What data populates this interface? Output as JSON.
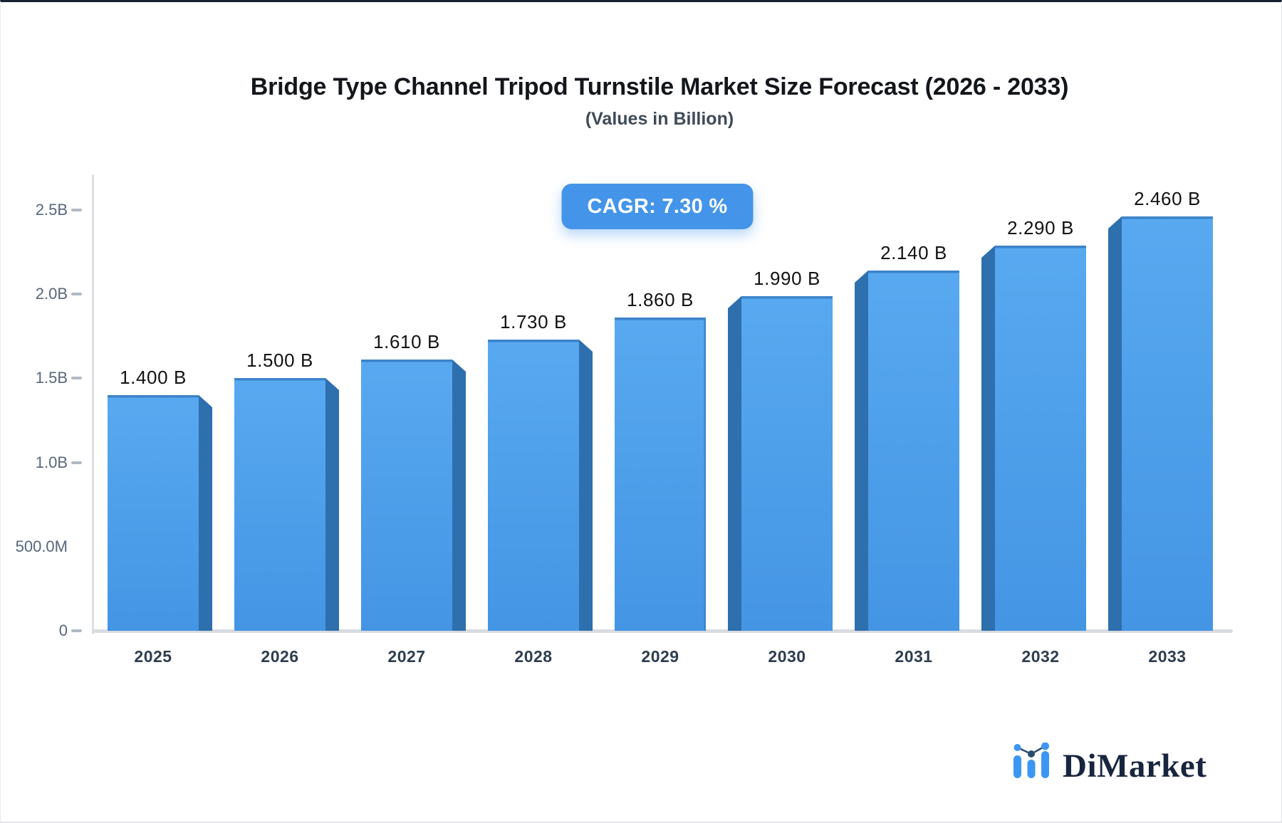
{
  "title": "Bridge Type Channel Tripod Turnstile Market Size Forecast (2026 - 2033)",
  "subtitle": "(Values in Billion)",
  "cagr_badge": "CAGR: 7.30 %",
  "logo": {
    "text": "DiMarket",
    "icon": "bar-chart-logo-icon"
  },
  "colors": {
    "badge_bg": "#4495e9",
    "bar_front_top": "#58a9f0",
    "bar_front_bottom": "#4495e4",
    "bar_side": "#2e6fae",
    "bar_top_edge": "#3c84c9",
    "axis_line": "#d9dce1",
    "tick": "#b1b9c3",
    "y_label": "#57677b",
    "x_label": "#2e3d50",
    "value_label": "#121212",
    "title": "#13161b",
    "subtitle": "#3f4a57",
    "logo_blue": "#3d96f3",
    "logo_navy": "#2a4a70",
    "logo_text": "#18253e"
  },
  "chart_data": {
    "type": "bar",
    "title": "Bridge Type Channel Tripod Turnstile Market Size Forecast (2026 - 2033)",
    "subtitle": "(Values in Billion)",
    "annotation": "CAGR: 7.30 %",
    "categories": [
      "2025",
      "2026",
      "2027",
      "2028",
      "2029",
      "2030",
      "2031",
      "2032",
      "2033"
    ],
    "values": [
      1.4,
      1.5,
      1.61,
      1.73,
      1.86,
      1.99,
      2.14,
      2.29,
      2.46
    ],
    "value_labels": [
      "1.400 B",
      "1.500 B",
      "1.610 B",
      "1.730 B",
      "1.860 B",
      "1.990 B",
      "2.140 B",
      "2.290 B",
      "2.460 B"
    ],
    "unit": "Billion",
    "xlabel": "",
    "ylabel": "",
    "ylim": [
      0,
      2.5
    ],
    "grid": false,
    "legend": "none",
    "yticks": [
      {
        "label": "2.5B",
        "value": 2.5,
        "tick": true
      },
      {
        "label": "2.0B",
        "value": 2.0,
        "tick": true
      },
      {
        "label": "1.5B",
        "value": 1.5,
        "tick": true
      },
      {
        "label": "1.0B",
        "value": 1.0,
        "tick": true
      },
      {
        "label": "500.0M",
        "value": 0.5,
        "tick": false
      },
      {
        "label": "0",
        "value": 0.0,
        "tick": true
      }
    ]
  }
}
